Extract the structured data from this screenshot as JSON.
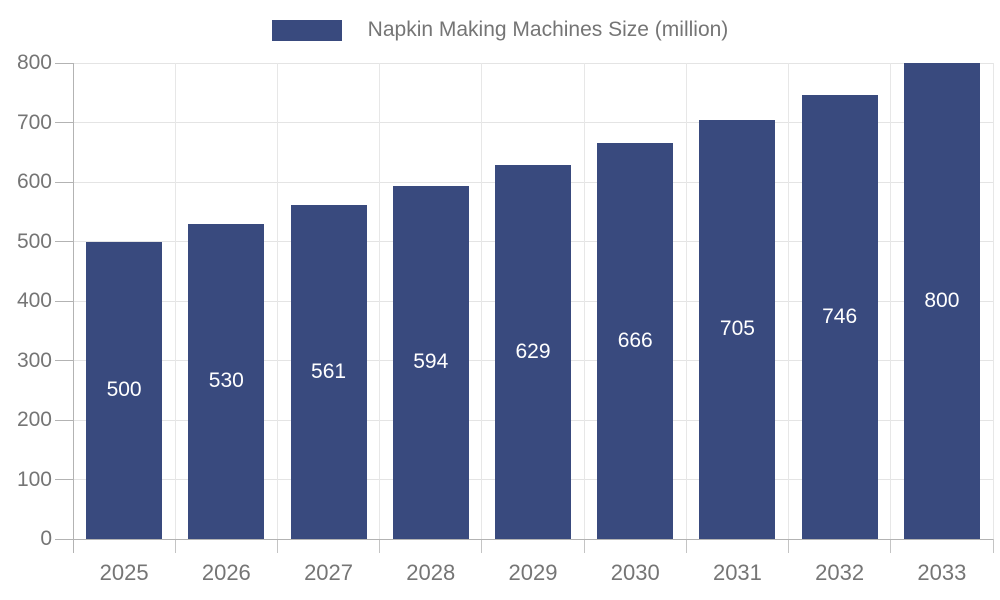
{
  "legend": {
    "label": "Napkin Making Machines Size (million)"
  },
  "chart_data": {
    "type": "bar",
    "title": "Napkin Making Machines Size (million)",
    "categories": [
      "2025",
      "2026",
      "2027",
      "2028",
      "2029",
      "2030",
      "2031",
      "2032",
      "2033"
    ],
    "values": [
      500,
      530,
      561,
      594,
      629,
      666,
      705,
      746,
      800
    ],
    "series": [
      {
        "name": "Napkin Making Machines Size (million)",
        "values": [
          500,
          530,
          561,
          594,
          629,
          666,
          705,
          746,
          800
        ]
      }
    ],
    "xlabel": "",
    "ylabel": "",
    "ylim": [
      0,
      800
    ],
    "yticks": [
      0,
      100,
      200,
      300,
      400,
      500,
      600,
      700,
      800
    ],
    "grid": true,
    "legend_position": "top",
    "bar_labels_inside": true,
    "colors": {
      "bar": "#394a7e",
      "bar_label": "#ffffff",
      "axis_text": "#757575",
      "axis_line": "#b3b3b3",
      "gridline": "#e7e7e7",
      "background": "#ffffff"
    }
  }
}
